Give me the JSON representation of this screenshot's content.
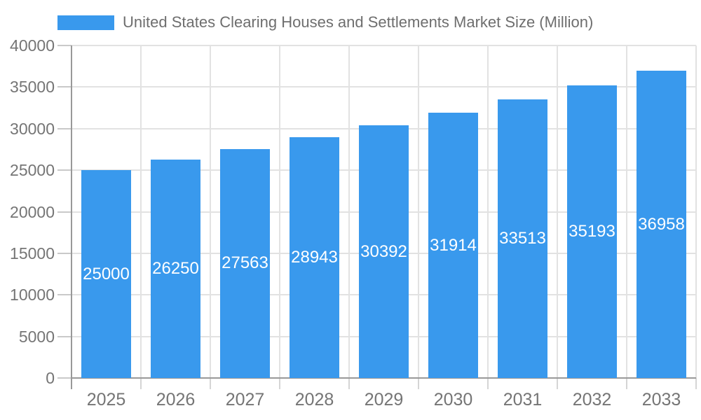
{
  "chart_data": {
    "type": "bar",
    "title": "United States Clearing Houses and Settlements Market Size (Million)",
    "categories": [
      "2025",
      "2026",
      "2027",
      "2028",
      "2029",
      "2030",
      "2031",
      "2032",
      "2033"
    ],
    "values": [
      25000,
      26250,
      27563,
      28943,
      30392,
      31914,
      33513,
      35193,
      36958
    ],
    "bar_labels": [
      "25000",
      "26250",
      "27563",
      "28943",
      "30392",
      "31914",
      "33513",
      "35193",
      "36958"
    ],
    "xlabel": "",
    "ylabel": "",
    "ylim": [
      0,
      40000
    ],
    "ytick_step": 5000,
    "ytick_labels": [
      "0",
      "5000",
      "10000",
      "15000",
      "20000",
      "25000",
      "30000",
      "35000",
      "40000"
    ],
    "grid": true,
    "legend_position": "top-left",
    "colors": {
      "bar": "#3999ED",
      "bar_label": "#FFFFFF",
      "grid_line": "#E2E2E2",
      "axis_line": "#999999",
      "y_tick": "#C9C9C9",
      "x_tick": "#D5D5D5",
      "axis_text": "#757575",
      "legend_text": "#6E6E6E",
      "background": "#FFFFFF"
    }
  }
}
